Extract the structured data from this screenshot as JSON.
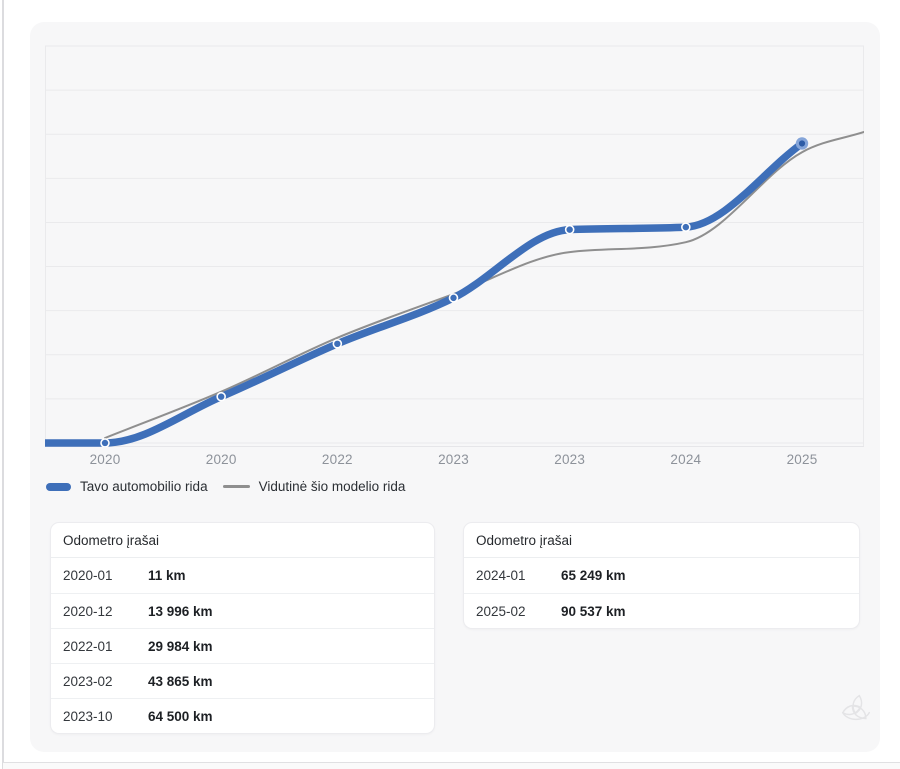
{
  "chart_data": {
    "type": "line",
    "title": "",
    "xlabel": "",
    "ylabel": "",
    "categories": [
      "2020",
      "2020",
      "2022",
      "2023",
      "2023",
      "2024",
      "2025"
    ],
    "series": [
      {
        "name": "Tavo automobilio rida",
        "color": "#3e6fb9",
        "style": "thick-with-markers",
        "values": [
          11,
          13996,
          29984,
          43865,
          64500,
          65249,
          90537
        ],
        "lead_in_flat_from_left_edge": true
      },
      {
        "name": "Vidutinė šio modelio rida",
        "color": "#8f8f8f",
        "style": "thin",
        "values": [
          1500,
          15500,
          31800,
          45000,
          57700,
          60700,
          87900
        ],
        "extend_to_right_edge_value": 94000
      }
    ],
    "ylim": [
      0,
      120000
    ],
    "grid": true,
    "gridline_count": 9,
    "legend_position": "bottom-left",
    "plot_background": "#f7f7f8",
    "gridline_color": "#eaeaec",
    "marker": {
      "ring_color": "#ffffff",
      "end_halo_color": "#85a5d9",
      "end_dot_color": "#2d5ca6"
    }
  },
  "legend": {
    "items": [
      {
        "label": "Tavo automobilio rida",
        "color": "#3e6fb9",
        "swatch": "pill"
      },
      {
        "label": "Vidutinė šio modelio rida",
        "color": "#8f8f8f",
        "swatch": "line"
      }
    ]
  },
  "tables": [
    {
      "title": "Odometro įrašai",
      "rows": [
        {
          "date": "2020-01",
          "km": "11 km"
        },
        {
          "date": "2020-12",
          "km": "13 996 km"
        },
        {
          "date": "2022-01",
          "km": "29 984 km"
        },
        {
          "date": "2023-02",
          "km": "43 865 km"
        },
        {
          "date": "2023-10",
          "km": "64 500 km"
        }
      ]
    },
    {
      "title": "Odometro įrašai",
      "rows": [
        {
          "date": "2024-01",
          "km": "65 249 km"
        },
        {
          "date": "2025-02",
          "km": "90 537 km"
        }
      ]
    }
  ],
  "watermark": {
    "icon": "trefoil-logo",
    "color": "#e1e1e4"
  }
}
